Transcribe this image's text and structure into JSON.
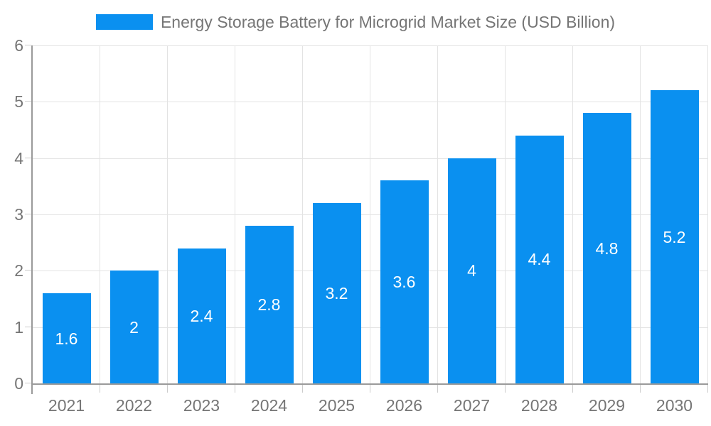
{
  "chart_data": {
    "type": "bar",
    "title": "Energy Storage Battery for Microgrid Market Size (USD Billion)",
    "categories": [
      "2021",
      "2022",
      "2023",
      "2024",
      "2025",
      "2026",
      "2027",
      "2028",
      "2029",
      "2030"
    ],
    "values": [
      1.6,
      2,
      2.4,
      2.8,
      3.2,
      3.6,
      4,
      4.4,
      4.8,
      5.2
    ],
    "bar_labels": [
      "1.6",
      "2",
      "2.4",
      "2.8",
      "3.2",
      "3.6",
      "4",
      "4.4",
      "4.8",
      "5.2"
    ],
    "xlabel": "",
    "ylabel": "",
    "ylim": [
      0,
      6
    ],
    "yticks": [
      0,
      1,
      2,
      3,
      4,
      5,
      6
    ],
    "grid": true,
    "legend_position": "top",
    "value_labels_position": "center-inside",
    "colors": {
      "bar": "#0A90F0",
      "bar_label_text": "#FFFFFF",
      "axis_text": "#757575",
      "axis_line": "#9A9A9A",
      "gridline": "#E3E3E3",
      "tick": "#CCCCCC",
      "background": "#FFFFFF"
    }
  }
}
